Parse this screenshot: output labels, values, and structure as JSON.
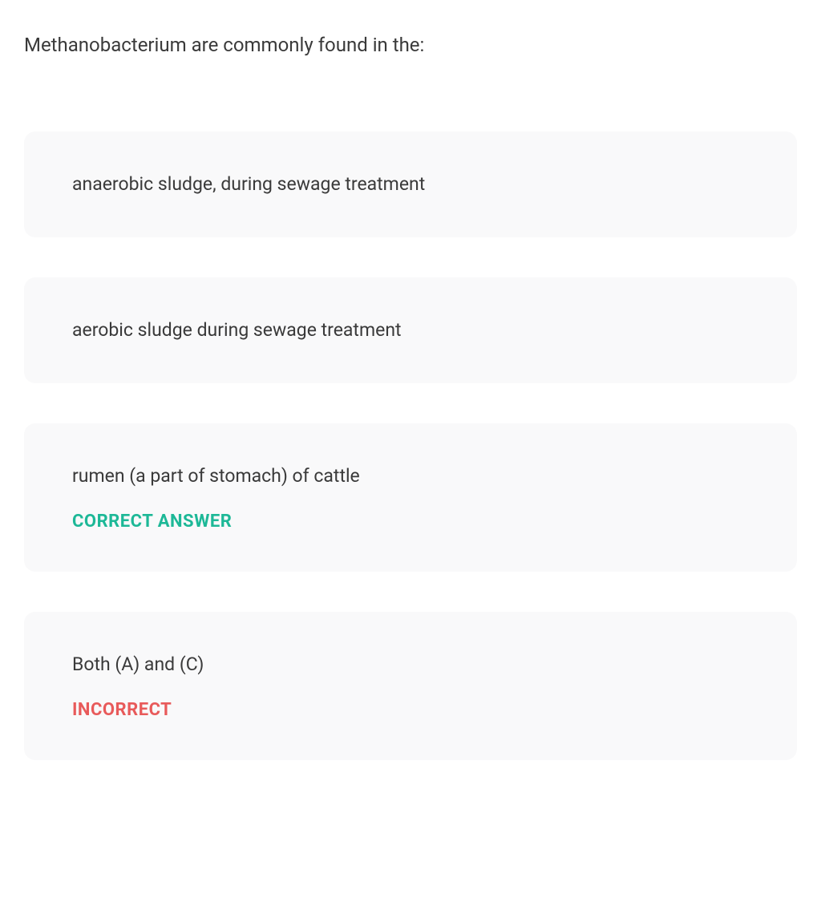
{
  "question": {
    "text": "Methanobacterium are commonly found in the:"
  },
  "options": [
    {
      "text": "anaerobic sludge, during sewage treatment",
      "status": null
    },
    {
      "text": "aerobic sludge during sewage treatment",
      "status": null
    },
    {
      "text": "rumen (a part of stomach) of cattle",
      "status": "CORRECT ANSWER",
      "status_type": "correct"
    },
    {
      "text": "Both (A) and (C)",
      "status": "INCORRECT",
      "status_type": "incorrect"
    }
  ],
  "colors": {
    "background": "#ffffff",
    "card_background": "#f9f9fa",
    "text": "#3a3a3a",
    "correct": "#1db897",
    "incorrect": "#e85a5a"
  }
}
